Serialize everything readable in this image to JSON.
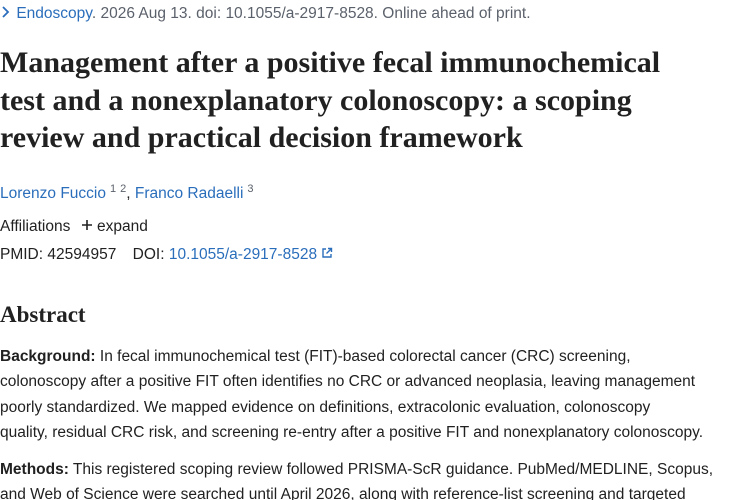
{
  "citation": {
    "journal": "Endoscopy",
    "details": ". 2026 Aug 13. doi: 10.1055/a-2917-8528. Online ahead of print."
  },
  "title_lines": [
    "Management after a positive fecal immunochemical",
    "test and a nonexplanatory colonoscopy: a scoping",
    "review and practical decision framework"
  ],
  "authors": [
    {
      "name": "Lorenzo Fuccio",
      "affiliations": [
        "1",
        "2"
      ]
    },
    {
      "name": "Franco Radaelli",
      "affiliations": [
        "3"
      ]
    }
  ],
  "author_separator": ",",
  "affiliations": {
    "label": "Affiliations",
    "toggle": "expand"
  },
  "identifiers": {
    "pmid": "PMID: 42594957",
    "doi_label": "DOI:",
    "doi": "10.1055/a-2917-8528"
  },
  "abstract": {
    "heading": "Abstract",
    "sections": [
      {
        "label": "Background:",
        "lines": [
          " In fecal immunochemical test (FIT)-based colorectal cancer (CRC) screening,",
          "colonoscopy after a positive FIT often identifies no CRC or advanced neoplasia, leaving management",
          "poorly standardized. We mapped evidence on definitions, extracolonic evaluation, colonoscopy",
          "quality, residual CRC risk, and screening re-entry after a positive FIT and nonexplanatory colonoscopy."
        ]
      },
      {
        "label": "Methods:",
        "lines": [
          " This registered scoping review followed PRISMA-ScR guidance. PubMed/MEDLINE, Scopus,",
          "and Web of Science were searched until April 2026, along with reference-list screening and targeted"
        ]
      }
    ]
  }
}
